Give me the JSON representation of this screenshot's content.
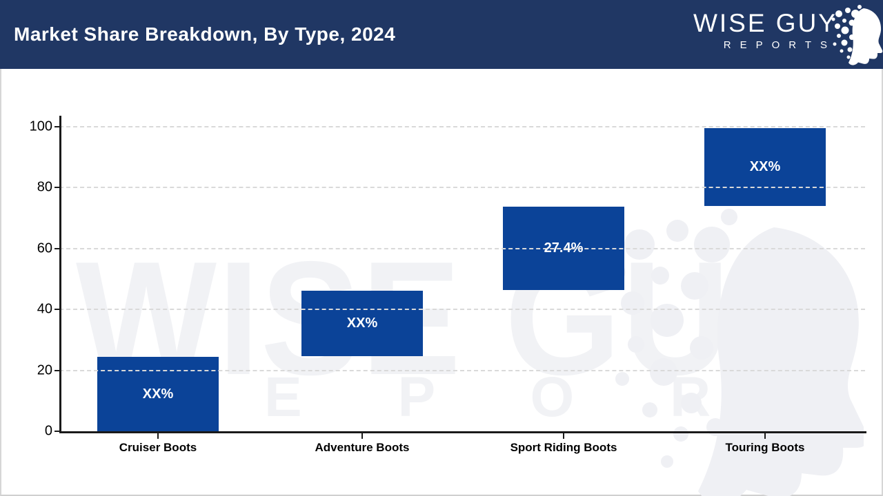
{
  "header": {
    "title": "Market Share Breakdown, By Type, 2024",
    "bg_color": "#203764",
    "logo": {
      "line1": "WISE GUY",
      "line2": "REPORTS"
    }
  },
  "watermark": {
    "line1": "WISE GU",
    "line2": "R E P O R T S"
  },
  "chart_data": {
    "type": "bar",
    "subtype": "floating-waterfall",
    "title": "Market Share Breakdown, By Type, 2024",
    "categories": [
      "Cruiser Boots",
      "Adventure Boots",
      "Sport Riding Boots",
      "Touring Boots"
    ],
    "bars": [
      {
        "category": "Cruiser Boots",
        "label": "XX%",
        "start": 0,
        "end": 24.4
      },
      {
        "category": "Adventure Boots",
        "label": "XX%",
        "start": 24.6,
        "end": 46.1
      },
      {
        "category": "Sport Riding Boots",
        "label": "27.4%",
        "start": 46.4,
        "end": 73.8
      },
      {
        "category": "Touring Boots",
        "label": "XX%",
        "start": 73.9,
        "end": 99.6
      }
    ],
    "bar_color": "#0b4398",
    "label_color": "#ffffff",
    "y_ticks": [
      0,
      20,
      40,
      60,
      80,
      100
    ],
    "ylim": [
      0,
      105
    ],
    "xlabel": "",
    "ylabel": "",
    "grid": "horizontal-dashed",
    "gridline_color": "#d9d9d9",
    "legend": "none"
  }
}
